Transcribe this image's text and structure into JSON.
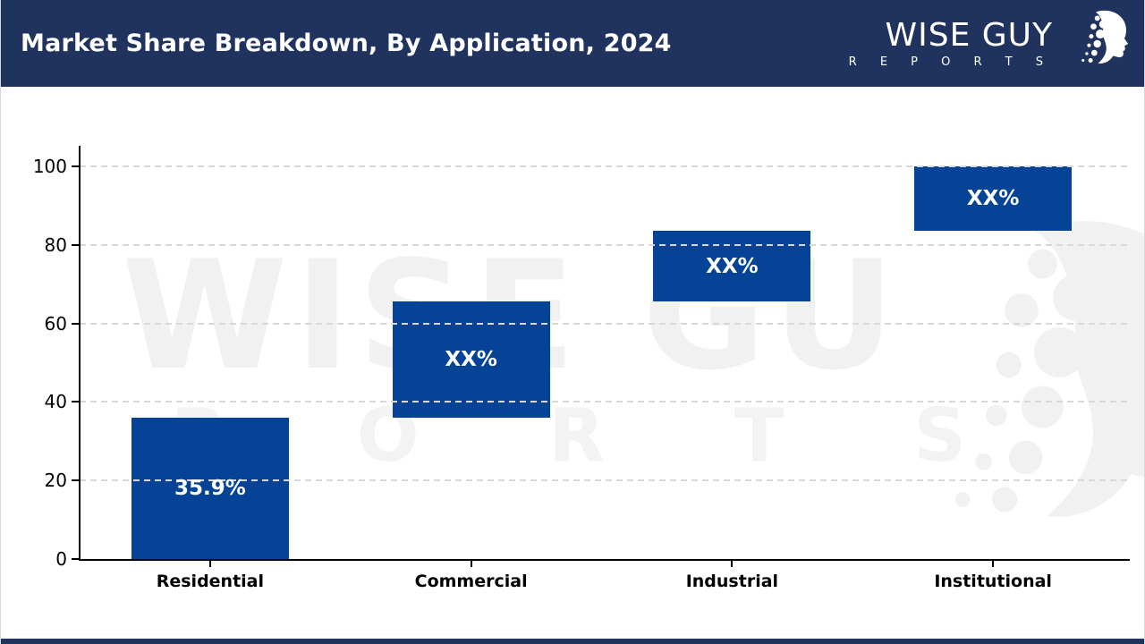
{
  "header": {
    "title": "Market Share Breakdown, By Application, 2024",
    "bg_color": "#20335f",
    "text_color": "#ffffff",
    "logo": {
      "line1": "WISE GUY",
      "line2": "R E P O R T S"
    }
  },
  "watermark": {
    "line1": "WISE GU",
    "line2": "R O R T S"
  },
  "chart_data": {
    "type": "bar",
    "subtype": "waterfall-floating-bars",
    "title": "Market Share Breakdown, By Application, 2024",
    "xlabel": "",
    "ylabel": "",
    "ylim": [
      0,
      100
    ],
    "yticks": [
      0,
      20,
      40,
      60,
      80,
      100
    ],
    "grid": "horizontal-dashed",
    "grid_color": "#d8d8d8",
    "legend": "none",
    "bar_color": "#044396",
    "label_color": "#ffffff",
    "categories": [
      "Residential",
      "Commercial",
      "Industrial",
      "Institutional"
    ],
    "series": [
      {
        "category": "Residential",
        "start": 0,
        "end": 35.9,
        "value": 35.9,
        "label": "35.9%"
      },
      {
        "category": "Commercial",
        "start": 35.9,
        "end": 65.5,
        "value": 29.6,
        "label": "XX%"
      },
      {
        "category": "Industrial",
        "start": 65.5,
        "end": 83.5,
        "value": 18.0,
        "label": "XX%"
      },
      {
        "category": "Institutional",
        "start": 83.5,
        "end": 100,
        "value": 16.5,
        "label": "XX%"
      }
    ]
  }
}
